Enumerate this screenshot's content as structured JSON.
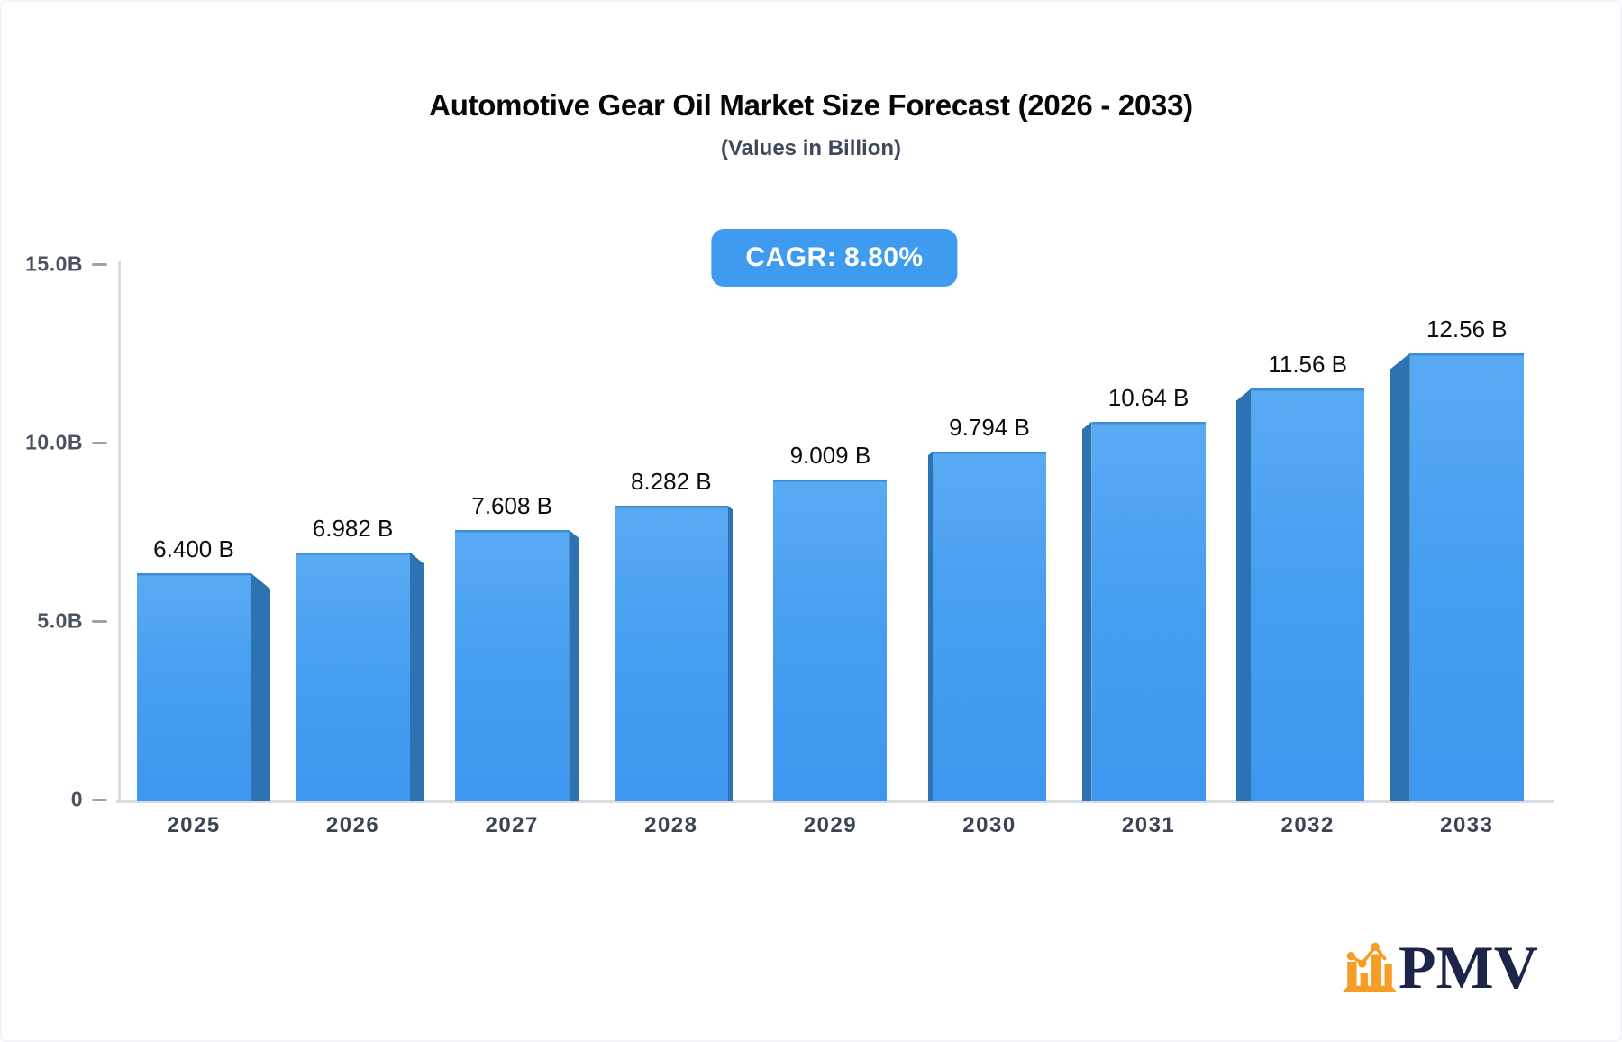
{
  "header": {
    "title": "Automotive Gear Oil Market Size Forecast (2026 - 2033)",
    "subtitle": "(Values in Billion)",
    "cagr_badge": "CAGR: 8.80%",
    "badge_color": "#3f9bf0"
  },
  "logo": {
    "text": "PMV",
    "icon": "bar-chart-logo-icon",
    "icon_color": "#f69d27",
    "text_color": "#1c2547"
  },
  "chart_data": {
    "type": "bar",
    "title": "Automotive Gear Oil Market Size Forecast (2026 - 2033)",
    "subtitle": "(Values in Billion)",
    "cagr": "8.80%",
    "categories": [
      "2025",
      "2026",
      "2027",
      "2028",
      "2029",
      "2030",
      "2031",
      "2032",
      "2033"
    ],
    "values": [
      6.4,
      6.982,
      7.608,
      8.282,
      9.009,
      9.794,
      10.64,
      11.56,
      12.56
    ],
    "value_labels": [
      "6.400 B",
      "6.982 B",
      "7.608 B",
      "8.282 B",
      "9.009 B",
      "9.794 B",
      "10.64 B",
      "11.56 B",
      "12.56 B"
    ],
    "xlabel": "",
    "ylabel": "",
    "ylim": [
      0,
      15
    ],
    "y_tick_values": [
      0,
      5,
      10,
      15
    ],
    "y_tick_labels": [
      "0",
      "5.0B",
      "10.0B",
      "15.0B"
    ],
    "grid": false,
    "legend": false,
    "bar_color_top": "#59aaf3",
    "bar_color_bottom": "#3e97ef",
    "bar_side_color": "#2d73b2",
    "style": "3d-perspective-bars"
  }
}
